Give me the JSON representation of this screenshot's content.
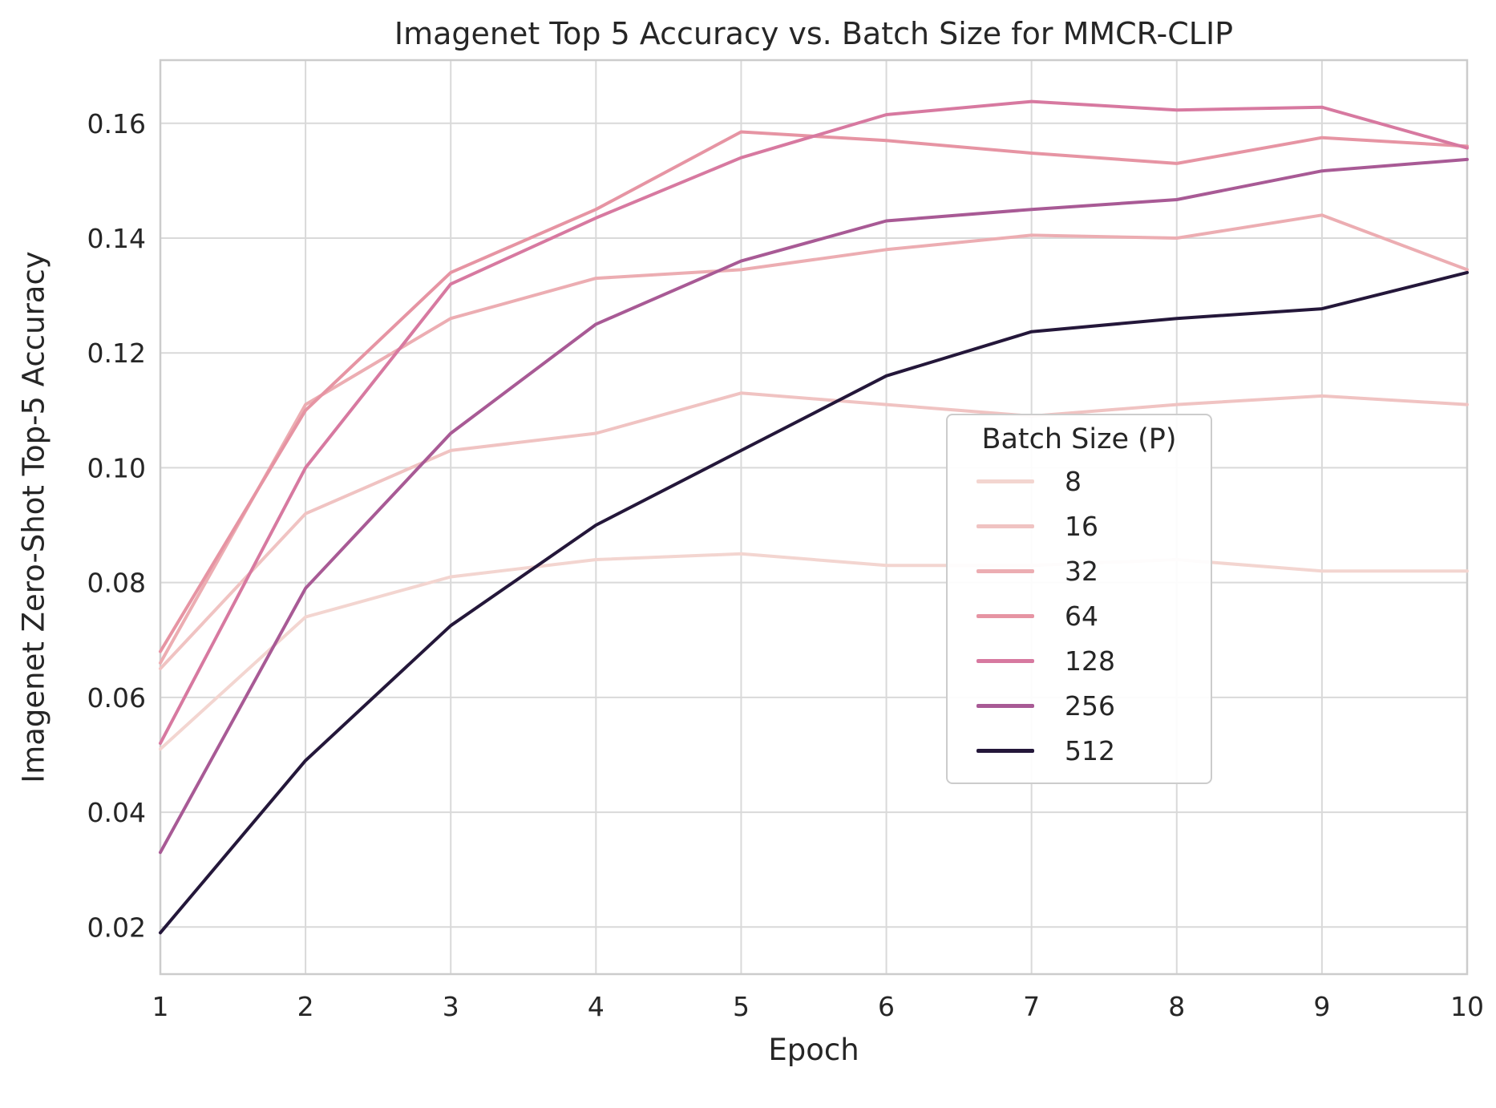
{
  "chart_data": {
    "type": "line",
    "title": "Imagenet Top 5 Accuracy vs. Batch Size for MMCR-CLIP",
    "xlabel": "Epoch",
    "ylabel": "Imagenet Zero-Shot Top-5 Accuracy",
    "legend_title": "Batch Size (P)",
    "legend_position": "center-right-inside",
    "grid": true,
    "x": [
      1,
      2,
      3,
      4,
      5,
      6,
      7,
      8,
      9,
      10
    ],
    "xlim": [
      1,
      10
    ],
    "ylim": [
      0.0118,
      0.171
    ],
    "xtick_labels": [
      "1",
      "2",
      "3",
      "4",
      "5",
      "6",
      "7",
      "8",
      "9",
      "10"
    ],
    "yticks": [
      0.02,
      0.04,
      0.06,
      0.08,
      0.1,
      0.12,
      0.14,
      0.16
    ],
    "ytick_labels": [
      "0.02",
      "0.04",
      "0.06",
      "0.08",
      "0.10",
      "0.12",
      "0.14",
      "0.16"
    ],
    "series": [
      {
        "name": "8",
        "color": "#f3d5d0",
        "values": [
          0.051,
          0.074,
          0.081,
          0.084,
          0.085,
          0.083,
          0.083,
          0.084,
          0.082,
          0.082
        ]
      },
      {
        "name": "16",
        "color": "#f0c3c2",
        "values": [
          0.065,
          0.092,
          0.103,
          0.106,
          0.113,
          0.111,
          0.109,
          0.111,
          0.1125,
          0.111
        ]
      },
      {
        "name": "32",
        "color": "#ecadb2",
        "values": [
          0.066,
          0.111,
          0.126,
          0.133,
          0.1345,
          0.138,
          0.1405,
          0.14,
          0.144,
          0.1345
        ]
      },
      {
        "name": "64",
        "color": "#e694a3",
        "values": [
          0.068,
          0.11,
          0.134,
          0.145,
          0.1585,
          0.157,
          0.1548,
          0.153,
          0.1575,
          0.156
        ]
      },
      {
        "name": "128",
        "color": "#d779a0",
        "values": [
          0.052,
          0.1,
          0.132,
          0.1435,
          0.154,
          0.1615,
          0.1638,
          0.1623,
          0.1628,
          0.1557
        ]
      },
      {
        "name": "256",
        "color": "#a85a95",
        "values": [
          0.033,
          0.079,
          0.106,
          0.125,
          0.136,
          0.143,
          0.145,
          0.1467,
          0.1517,
          0.1537
        ]
      },
      {
        "name": "512",
        "color": "#24173a",
        "values": [
          0.019,
          0.049,
          0.0725,
          0.09,
          0.103,
          0.116,
          0.1237,
          0.126,
          0.1277,
          0.134
        ]
      }
    ]
  },
  "colors": {
    "background": "#ffffff",
    "grid": "#d9d9d9",
    "frame": "#cccccc",
    "text": "#262626",
    "legend_border": "#cccccc"
  }
}
